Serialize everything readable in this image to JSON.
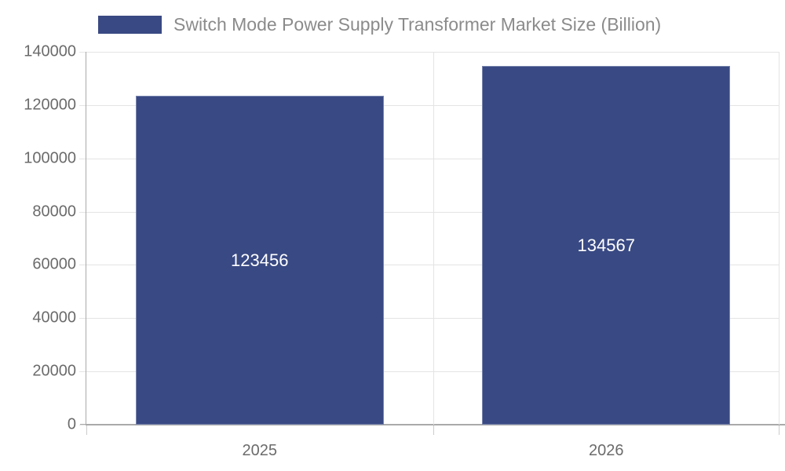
{
  "chart_data": {
    "type": "bar",
    "title": "Switch Mode Power Supply Transformer Market Size (Billion)",
    "categories": [
      "2025",
      "2026"
    ],
    "values": [
      123456,
      134567
    ],
    "bar_labels": [
      "123456",
      "134567"
    ],
    "xlabel": "",
    "ylabel": "",
    "ylim": [
      0,
      140000
    ],
    "yticks": [
      0,
      20000,
      40000,
      60000,
      80000,
      100000,
      120000,
      140000
    ],
    "ytick_labels": [
      "0",
      "20000",
      "40000",
      "60000",
      "80000",
      "100000",
      "120000",
      "140000"
    ],
    "grid": true,
    "legend_position": "top",
    "bar_width_fraction": 0.716,
    "colors": {
      "bar": "#394983",
      "bar_border": "#828eb6",
      "bar_label_text": "#ffffff",
      "title_text": "#8b8b8b",
      "tick_text": "#6b6b6b",
      "axis_line": "#aaaaaa",
      "grid_line": "#e4e4e4",
      "boundary_tick": "#cccccc",
      "background": "#ffffff"
    }
  }
}
